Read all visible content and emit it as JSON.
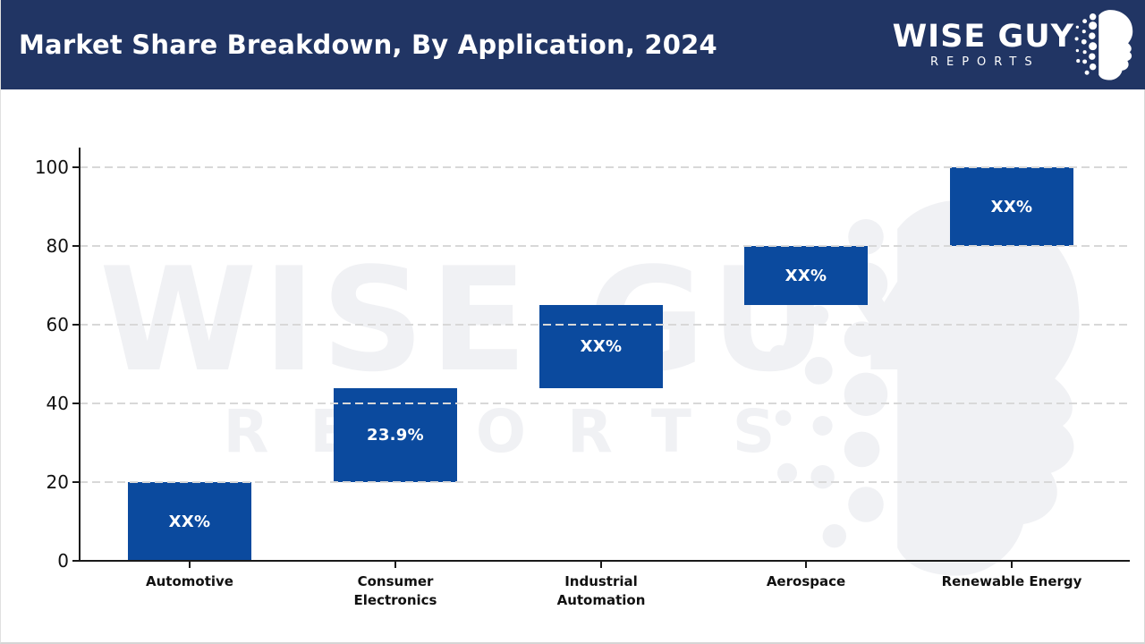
{
  "header": {
    "title": "Market Share Breakdown, By Application, 2024",
    "logo": {
      "line1": "WISE GUY",
      "line2": "REPORTS"
    }
  },
  "watermark": {
    "line1": "WISE GUY",
    "line2": "REPORTS"
  },
  "chart_data": {
    "type": "bar",
    "subtype": "floating-segment-market-share",
    "title": "Market Share Breakdown, By Application, 2024",
    "categories": [
      "Automotive",
      "Consumer\nElectronics",
      "Industrial\nAutomation",
      "Aerospace",
      "Renewable Energy"
    ],
    "segments": [
      {
        "category": "Automotive",
        "start": 0,
        "end": 20,
        "label": "XX%"
      },
      {
        "category": "Consumer Electronics",
        "start": 20,
        "end": 43.9,
        "label": "23.9%",
        "value": 23.9
      },
      {
        "category": "Industrial Automation",
        "start": 43.9,
        "end": 65,
        "label": "XX%"
      },
      {
        "category": "Aerospace",
        "start": 65,
        "end": 80,
        "label": "XX%"
      },
      {
        "category": "Renewable Energy",
        "start": 80,
        "end": 100,
        "label": "XX%"
      }
    ],
    "yticks": [
      0,
      20,
      40,
      60,
      80,
      100
    ],
    "ylim": [
      0,
      100
    ],
    "xlabel": "",
    "ylabel": "",
    "grid": "horizontal-dashed",
    "legend": "none",
    "bar_color": "#0b4a9e",
    "bar_label_color": "#ffffff"
  },
  "colors": {
    "header_bg": "#213564",
    "bar": "#0b4a9e",
    "gridline": "#d8d8d8",
    "axis": "#1a1a1a",
    "watermark": "#f0f1f4",
    "page_border": "#d5d5d5"
  }
}
